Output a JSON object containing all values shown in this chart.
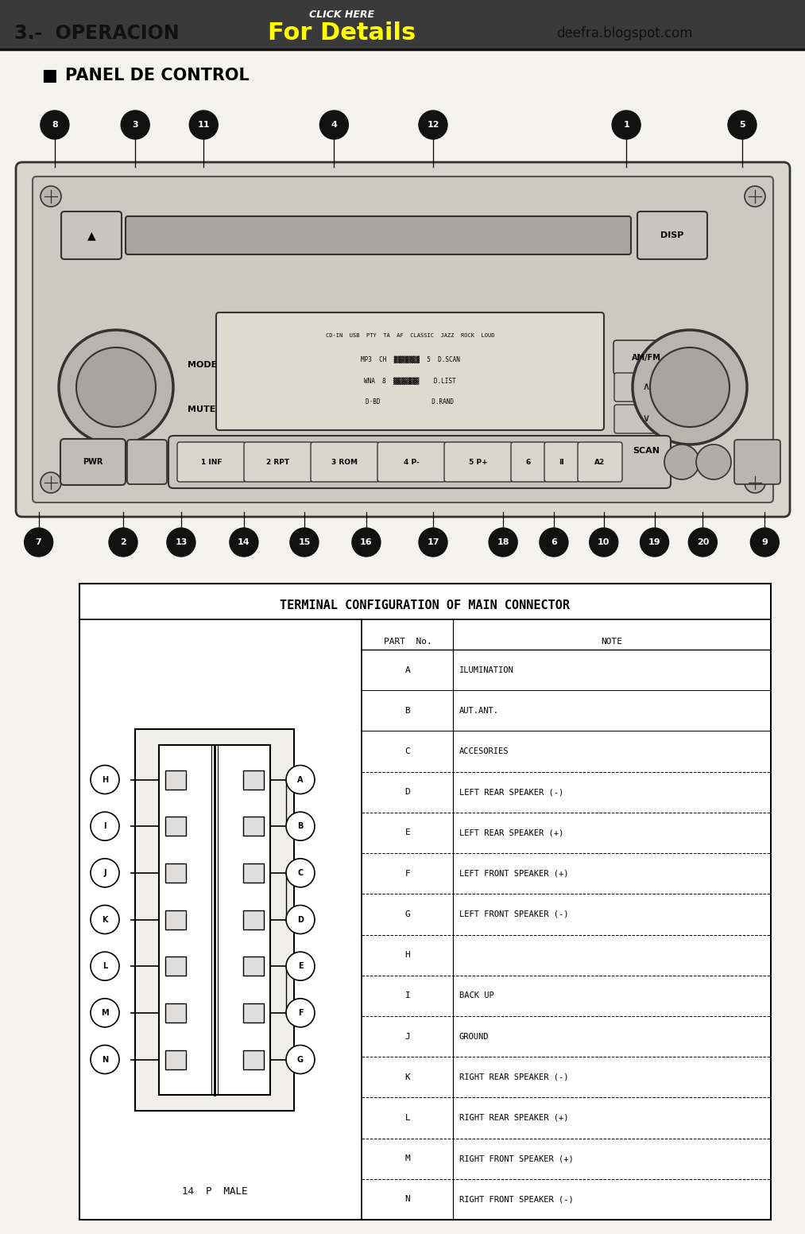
{
  "page_bg": "#e8e6e0",
  "content_bg": "#f5f3ef",
  "header_bg": "#3a3a3a",
  "click_here_color": "#ffffff",
  "for_details_color": "#ffff00",
  "header_prefix": "3.-  OPERACION",
  "header_click": "CLICK HERE",
  "header_middle": "For Details",
  "header_suffix": "deefra.blogspot.com",
  "panel_title": "PANEL DE CONTROL",
  "terminal_title": "TERMINAL CONFIGURATION OF MAIN CONNECTOR",
  "terminal_header_col1": "PART  No.",
  "terminal_header_col2": "NOTE",
  "terminal_rows": [
    [
      "A",
      "ILUMINATION"
    ],
    [
      "B",
      "AUT.ANT."
    ],
    [
      "C",
      "ACCESORIES"
    ],
    [
      "D",
      "LEFT REAR SPEAKER (-)"
    ],
    [
      "E",
      "LEFT REAR SPEAKER (+)"
    ],
    [
      "F",
      "LEFT FRONT SPEAKER (+)"
    ],
    [
      "G",
      "LEFT FRONT SPEAKER (-)"
    ],
    [
      "H",
      ""
    ],
    [
      "I",
      "BACK UP"
    ],
    [
      "J",
      "GROUND"
    ],
    [
      "K",
      "RIGHT REAR SPEAKER (-)"
    ],
    [
      "L",
      "RIGHT REAR SPEAKER (+)"
    ],
    [
      "M",
      "RIGHT FRONT SPEAKER (+)"
    ],
    [
      "N",
      "RIGHT FRONT SPEAKER (-)"
    ]
  ],
  "male_label": "14  P  MALE",
  "bubbles_top": [
    {
      "num": "8",
      "xf": 0.068
    },
    {
      "num": "3",
      "xf": 0.168
    },
    {
      "num": "11",
      "xf": 0.253
    },
    {
      "num": "4",
      "xf": 0.415
    },
    {
      "num": "12",
      "xf": 0.538
    },
    {
      "num": "1",
      "xf": 0.778
    },
    {
      "num": "5",
      "xf": 0.922
    }
  ],
  "bubbles_bottom": [
    {
      "num": "7",
      "xf": 0.048
    },
    {
      "num": "2",
      "xf": 0.153
    },
    {
      "num": "13",
      "xf": 0.225
    },
    {
      "num": "14",
      "xf": 0.303
    },
    {
      "num": "15",
      "xf": 0.378
    },
    {
      "num": "16",
      "xf": 0.455
    },
    {
      "num": "17",
      "xf": 0.538
    },
    {
      "num": "18",
      "xf": 0.625
    },
    {
      "num": "6",
      "xf": 0.688
    },
    {
      "num": "10",
      "xf": 0.75
    },
    {
      "num": "19",
      "xf": 0.813
    },
    {
      "num": "20",
      "xf": 0.873
    },
    {
      "num": "9",
      "xf": 0.95
    }
  ]
}
